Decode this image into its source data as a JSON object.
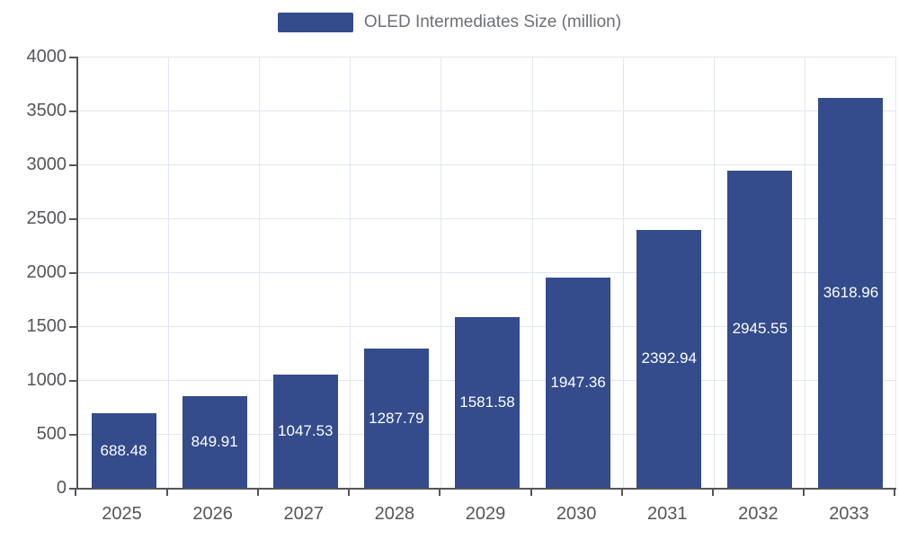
{
  "legend": {
    "label": "OLED Intermediates Size (million)"
  },
  "colors": {
    "bar": "#344b8c",
    "grid": "#e0e6f1",
    "axis": "#55565c",
    "bar_label_text": "#ffffff",
    "legend_text": "#6e7079",
    "tick_text": "#54565c"
  },
  "chart_data": {
    "type": "bar",
    "title": "OLED Intermediates Size (million)",
    "categories": [
      "2025",
      "2026",
      "2027",
      "2028",
      "2029",
      "2030",
      "2031",
      "2032",
      "2033"
    ],
    "values": [
      688.48,
      849.91,
      1047.53,
      1287.79,
      1581.58,
      1947.36,
      2392.94,
      2945.55,
      3618.96
    ],
    "value_labels": [
      "688.48",
      "849.91",
      "1047.53",
      "1287.79",
      "1581.58",
      "1947.36",
      "2392.94",
      "2945.55",
      "3618.96"
    ],
    "xlabel": "",
    "ylabel": "",
    "ylim": [
      0,
      4000
    ],
    "yticks": [
      0,
      500,
      1000,
      1500,
      2000,
      2500,
      3000,
      3500,
      4000
    ],
    "grid": true,
    "legend_position": "top"
  }
}
